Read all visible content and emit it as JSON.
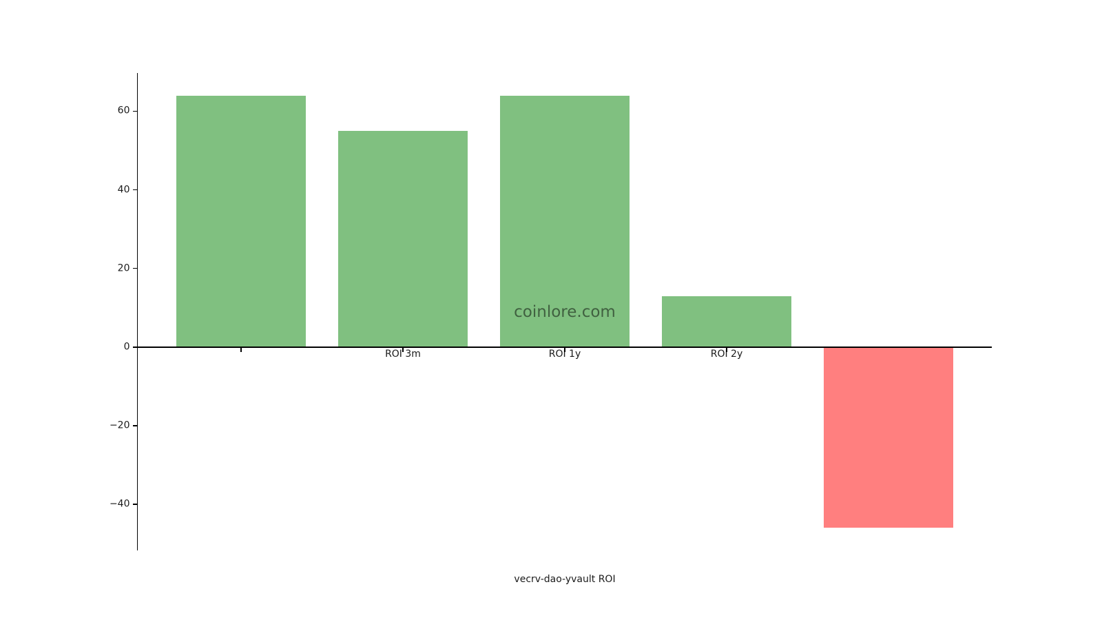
{
  "watermark": {
    "text": "coinlore.com",
    "color": "rgba(0, 0, 0, 0.5)"
  },
  "chart_data": {
    "type": "bar",
    "title": "vecrv-dao-yvault ROI",
    "categories": [
      "",
      "ROI 3m",
      "ROI 1y",
      "ROI 2y",
      ""
    ],
    "values": [
      64,
      55,
      64,
      13,
      -46
    ],
    "xtick_labels": [
      "",
      "ROI 3m",
      "ROI 1y",
      "ROI 2y"
    ],
    "yticks": [
      60,
      40,
      20,
      0,
      -20,
      -40
    ],
    "ylim": [
      -51.7,
      69.7
    ],
    "xlabel": "",
    "ylabel": "",
    "grid": false,
    "legend": "none",
    "positive_color": "#80c080",
    "negative_color": "#ff7f7f",
    "axis_color": "#000000",
    "text_color": "#1a1a1a"
  }
}
